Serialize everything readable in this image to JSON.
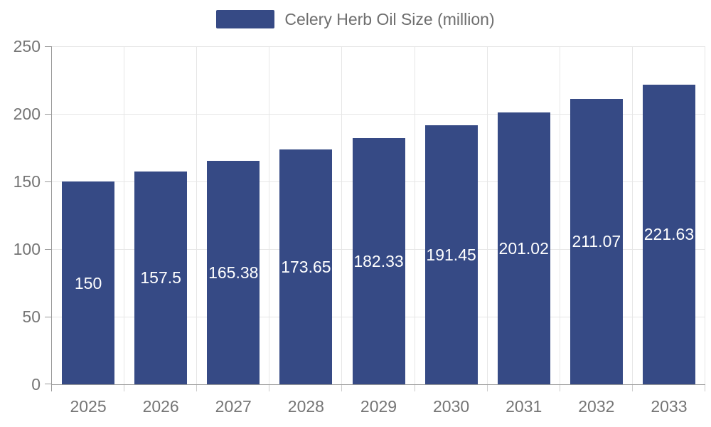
{
  "legend": {
    "label": "Celery Herb Oil Size (million)"
  },
  "chart_data": {
    "type": "bar",
    "title": "Celery Herb Oil Size (million)",
    "categories": [
      "2025",
      "2026",
      "2027",
      "2028",
      "2029",
      "2030",
      "2031",
      "2032",
      "2033"
    ],
    "values": [
      150,
      157.5,
      165.38,
      173.65,
      182.33,
      191.45,
      201.02,
      211.07,
      221.63
    ],
    "value_labels": [
      "150",
      "157.5",
      "165.38",
      "173.65",
      "182.33",
      "191.45",
      "201.02",
      "211.07",
      "221.63"
    ],
    "xlabel": "",
    "ylabel": "",
    "ylim": [
      0,
      250
    ],
    "yticks": [
      0,
      50,
      100,
      150,
      200,
      250
    ],
    "grid": true,
    "legend_position": "top-center",
    "colors": {
      "bar": "#364a85",
      "grid": "#e6e6e6",
      "axis": "#999999",
      "minor_tick": "#cccccc",
      "axis_text": "#757575",
      "legend_text": "#6e6e6e",
      "value_text": "#ffffff",
      "background": "#ffffff"
    }
  }
}
